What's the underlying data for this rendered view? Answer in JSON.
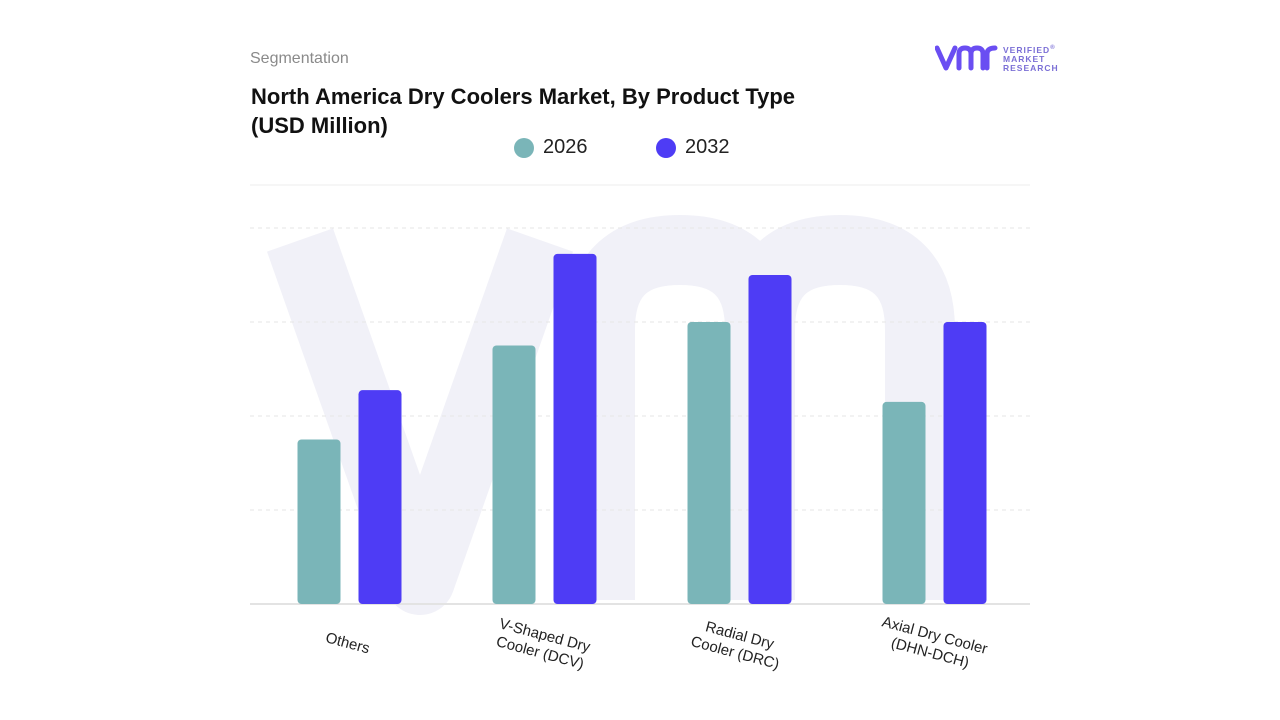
{
  "header": {
    "segmentation_label": "Segmentation",
    "title": "North America Dry Coolers Market, By Product Type (USD Million)"
  },
  "logo": {
    "mark_text": "vmr",
    "line1": "VERIFIED",
    "line2": "MARKET",
    "line3": "RESEARCH",
    "registered": "®"
  },
  "colors": {
    "series_2026": "#7ab5b8",
    "series_2032": "#4e3cf5",
    "grid": "#dddddd",
    "brand": "#6a4ef2",
    "watermark": "#f1f1f8"
  },
  "chart_data": {
    "type": "bar",
    "categories": [
      "Others",
      "V-Shaped Dry Cooler (DCV)",
      "Radial Dry Cooler (DRC)",
      "Axial Dry Cooler (DHN-DCH)"
    ],
    "category_lines": [
      [
        "Others"
      ],
      [
        "V-Shaped Dry",
        "Cooler (DCV)"
      ],
      [
        "Radial Dry",
        "Cooler (DRC)"
      ],
      [
        "Axial Dry Cooler",
        "(DHN-DCH)"
      ]
    ],
    "series": [
      {
        "name": "2026",
        "values": [
          35,
          55,
          60,
          43
        ]
      },
      {
        "name": "2032",
        "values": [
          45.5,
          74.5,
          70,
          60
        ]
      }
    ],
    "ylim": [
      0,
      80
    ],
    "gridlines": [
      0,
      20,
      40,
      60,
      80
    ],
    "grid": true,
    "legend_position": "top-center",
    "title": "North America Dry Coolers Market, By Product Type (USD Million)",
    "xlabel": "",
    "ylabel": ""
  }
}
